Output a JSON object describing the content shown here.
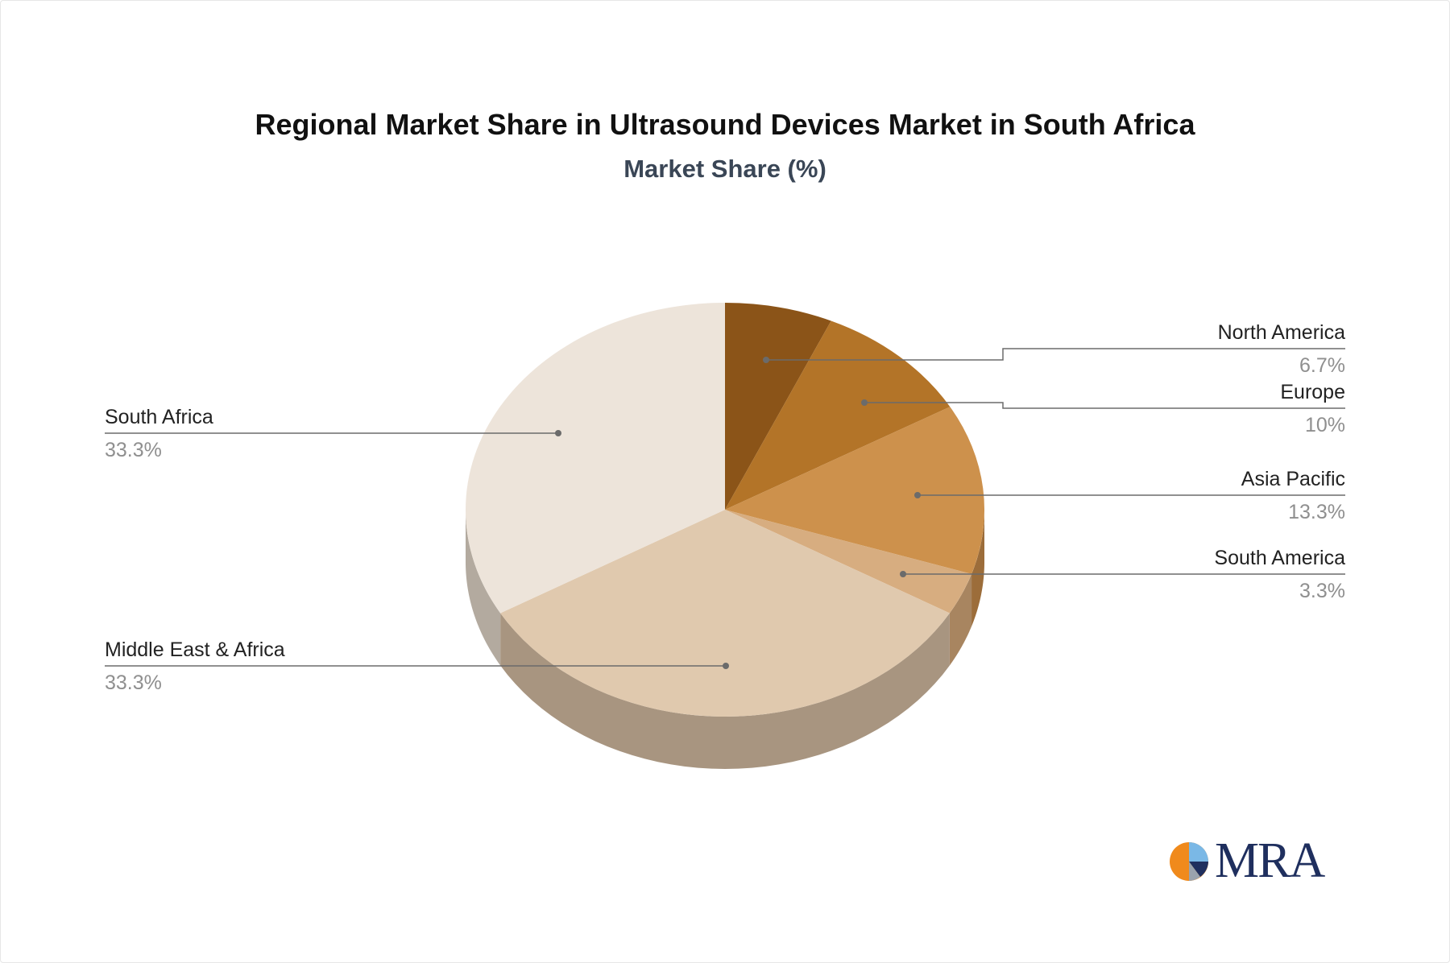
{
  "title": "Regional Market Share in Ultrasound Devices Market in South Africa",
  "subtitle": "Market Share (%)",
  "chart_data": {
    "type": "pie",
    "title": "Regional Market Share in Ultrasound Devices Market in South Africa",
    "subtitle": "Market Share (%)",
    "unit": "%",
    "slices": [
      {
        "label": "North America",
        "value": 6.7,
        "display": "6.7%",
        "color": "#8b5418",
        "side_color": "#6a3f10"
      },
      {
        "label": "Europe",
        "value": 10,
        "display": "10%",
        "color": "#b37428",
        "side_color": "#8a5820"
      },
      {
        "label": "Asia Pacific",
        "value": 13.3,
        "display": "13.3%",
        "color": "#cd914c",
        "side_color": "#9c6d3a"
      },
      {
        "label": "South America",
        "value": 3.3,
        "display": "3.3%",
        "color": "#d7ad80",
        "side_color": "#a88560"
      },
      {
        "label": "Middle East & Africa",
        "value": 33.3,
        "display": "33.3%",
        "color": "#e0c9ae",
        "side_color": "#a89580"
      },
      {
        "label": "South Africa",
        "value": 33.3,
        "display": "33.3%",
        "color": "#ede4da",
        "side_color": "#b3aa9f"
      }
    ]
  },
  "logo": {
    "text": "MRA"
  }
}
